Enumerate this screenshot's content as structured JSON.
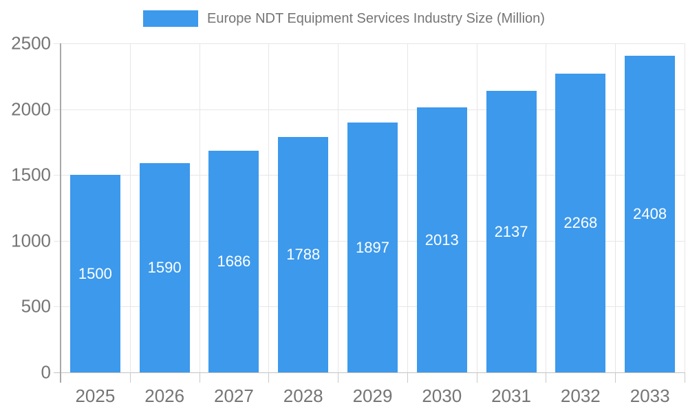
{
  "chart_data": {
    "type": "bar",
    "title": "Europe NDT Equipment Services Industry Size (Million)",
    "categories": [
      "2025",
      "2026",
      "2027",
      "2028",
      "2029",
      "2030",
      "2031",
      "2032",
      "2033"
    ],
    "values": [
      1500,
      1590,
      1686,
      1788,
      1897,
      2013,
      2137,
      2268,
      2408
    ],
    "xlabel": "",
    "ylabel": "",
    "ylim": [
      0,
      2500
    ],
    "yticks": [
      0,
      500,
      1000,
      1500,
      2000,
      2500
    ],
    "grid": true,
    "legend_position": "top-center",
    "bar_color": "#3C99EC",
    "bar_label_color": "#FFFFFF",
    "text_color": "#757575",
    "grid_color": "#E6E6E6",
    "zero_line_color": "#C2C2C2",
    "axis_line_color": "#A8A8A8"
  }
}
